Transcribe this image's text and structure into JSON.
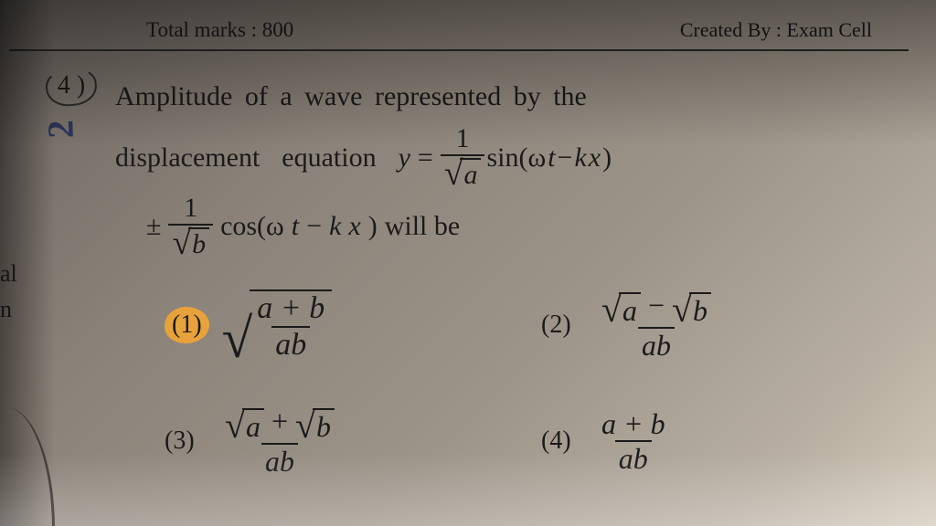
{
  "header": {
    "total_marks_label": "Total marks : 800",
    "created_by_label": "Created By : Exam Cell"
  },
  "question": {
    "number": "4 )",
    "hand_mark": "2",
    "text_line1_a": "Amplitude",
    "text_line1_b": "of",
    "text_line1_c": "a",
    "text_line1_d": "wave",
    "text_line1_e": "represented",
    "text_line1_f": "by",
    "text_line1_g": "the",
    "text_line2_a": "displacement",
    "text_line2_b": "equation",
    "eq_y": "y",
    "eq_equals": "=",
    "eq_one_1": "1",
    "eq_sqrt_a_var": "a",
    "eq_sin": "sin(ω",
    "eq_t1": "t",
    "eq_minus1": " − ",
    "eq_k1": "k",
    "eq_x1": "x",
    "eq_close1": ")",
    "eq_pm": "±",
    "eq_one_2": "1",
    "eq_sqrt_b_var": "b",
    "eq_cos": "cos(ω",
    "eq_t2": "t",
    "eq_minus2": " − ",
    "eq_k2": "k",
    "eq_x2": "x",
    "eq_close2": ")",
    "eq_willbe": " will be"
  },
  "options": {
    "opt1": {
      "num": "(1)",
      "aplusb": "a + b",
      "ab": "ab",
      "highlighted": true
    },
    "opt2": {
      "num": "(2)",
      "a": "a",
      "minus": " − ",
      "b": "b",
      "ab": "ab"
    },
    "opt3": {
      "num": "(3)",
      "a": "a",
      "plus": " + ",
      "b": "b",
      "ab": "ab"
    },
    "opt4": {
      "num": "(4)",
      "aplusb": "a + b",
      "ab": "ab"
    }
  },
  "side": {
    "al": "al",
    "n": "n"
  },
  "colors": {
    "text": "#1a1a1a",
    "highlight": "#e8a23c",
    "ink_blue": "#2b355a"
  }
}
